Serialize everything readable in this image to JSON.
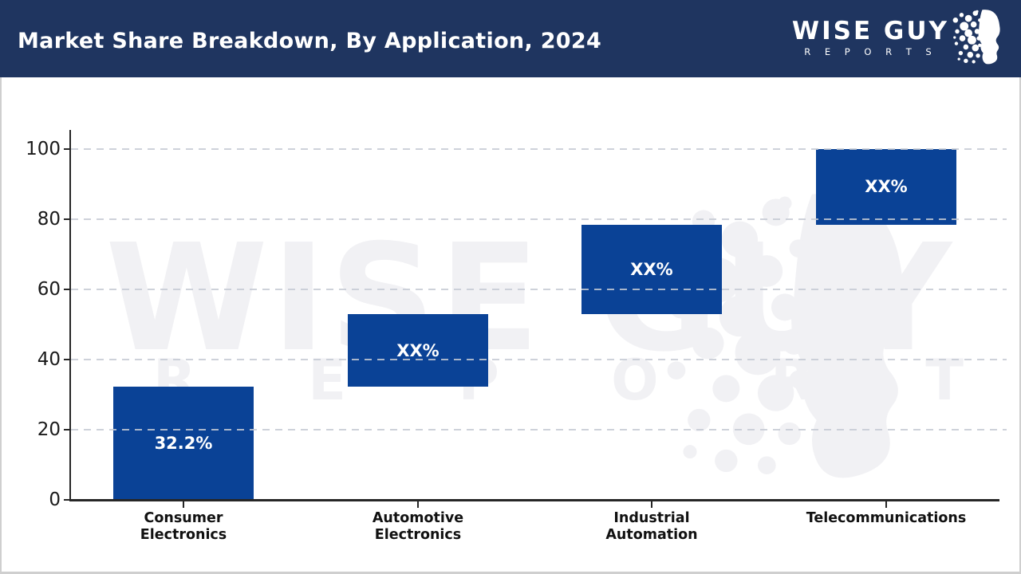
{
  "header": {
    "title": "Market Share Breakdown, By Application, 2024",
    "logo_line1": "WISE GUY",
    "logo_line2": "R E P O R T S",
    "bg_color": "#1f3560"
  },
  "watermark": {
    "line1": "WISE GUY",
    "line2": "R E P O R T S"
  },
  "chart_data": {
    "type": "bar",
    "variant": "floating-segment-waterfall",
    "title": "Market Share Breakdown, By Application, 2024",
    "categories": [
      "Consumer Electronics",
      "Automotive Electronics",
      "Industrial Automation",
      "Telecommunications"
    ],
    "category_display": [
      "Consumer\nElectronics",
      "Automotive\nElectronics",
      "Industrial\nAutomation",
      "Telecommunications"
    ],
    "segments": [
      {
        "category": "Consumer Electronics",
        "start": 0,
        "end": 32.2,
        "label": "32.2%"
      },
      {
        "category": "Automotive Electronics",
        "start": 32.2,
        "end": 53,
        "label": "XX%"
      },
      {
        "category": "Industrial Automation",
        "start": 53,
        "end": 78.5,
        "label": "XX%"
      },
      {
        "category": "Telecommunications",
        "start": 78.5,
        "end": 100,
        "label": "XX%"
      }
    ],
    "ylim": [
      0,
      100
    ],
    "yticks": [
      0,
      20,
      40,
      60,
      80,
      100
    ],
    "grid": {
      "horizontal": true,
      "style": "dashed"
    },
    "legend": "none",
    "bar_color": "#0a4296",
    "value_label_color": "#ffffff",
    "axis_color": "#262626",
    "gridline_color": "#d8d8d8"
  }
}
